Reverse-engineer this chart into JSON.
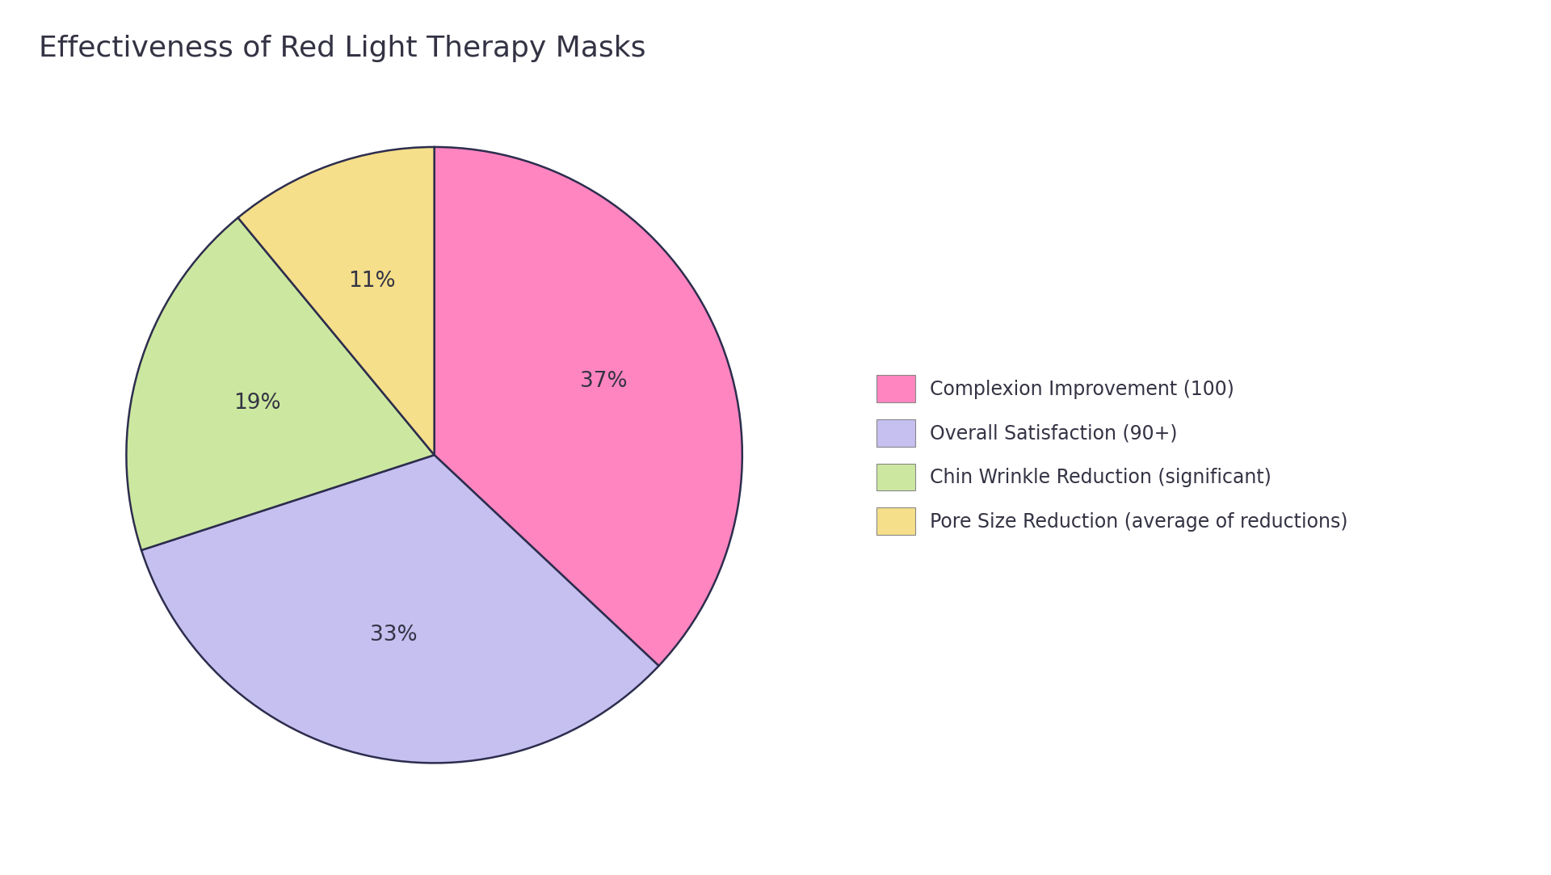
{
  "title": "Effectiveness of Red Light Therapy Masks",
  "slices": [
    37,
    33,
    19,
    11
  ],
  "labels": [
    "Complexion Improvement (100)",
    "Overall Satisfaction (90+)",
    "Chin Wrinkle Reduction (significant)",
    "Pore Size Reduction (average of reductions)"
  ],
  "colors": [
    "#FF85C0",
    "#C5C0F0",
    "#CCE8A0",
    "#F5DF8A"
  ],
  "edge_color": "#2d2d4e",
  "edge_width": 1.8,
  "text_color": "#333344",
  "background_color": "#ffffff",
  "title_fontsize": 26,
  "label_fontsize": 19,
  "legend_fontsize": 17,
  "startangle": 90,
  "pct_labels": [
    "37%",
    "33%",
    "19%",
    "11%"
  ]
}
